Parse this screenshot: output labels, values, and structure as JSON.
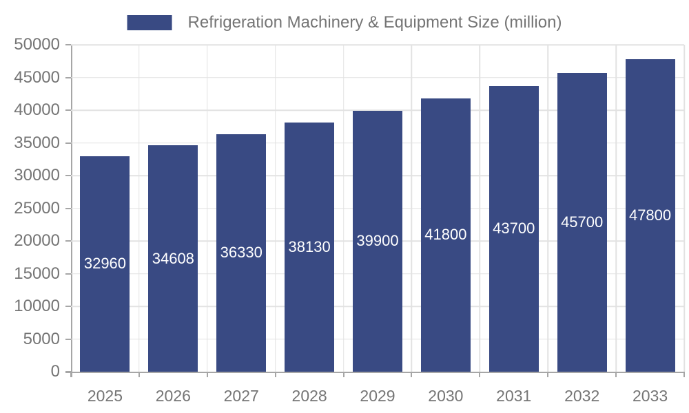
{
  "legend": {
    "label": "Refrigeration Machinery & Equipment Size (million)"
  },
  "chart_data": {
    "type": "bar",
    "title": "Refrigeration Machinery & Equipment Size (million)",
    "categories": [
      "2025",
      "2026",
      "2027",
      "2028",
      "2029",
      "2030",
      "2031",
      "2032",
      "2033"
    ],
    "series": [
      {
        "name": "Refrigeration Machinery & Equipment Size (million)",
        "values": [
          32960,
          34608,
          36330,
          38130,
          39900,
          41800,
          43700,
          45700,
          47800
        ]
      }
    ],
    "bar_value_labels": [
      "32960",
      "34608",
      "36330",
      "38130",
      "39900",
      "41800",
      "43700",
      "45700",
      "47800"
    ],
    "xlabel": "",
    "ylabel": "",
    "ylim": [
      0,
      50000
    ],
    "ytick_step": 5000,
    "yticks": [
      0,
      5000,
      10000,
      15000,
      20000,
      25000,
      30000,
      35000,
      40000,
      45000,
      50000
    ],
    "grid": true,
    "legend_position": "top-center",
    "colors": {
      "bar": "#394A83",
      "axis": "#A6A6A6",
      "grid": "#E2E2E2",
      "tick_text": "#757575",
      "bar_label_text": "#FFFFFF"
    }
  }
}
